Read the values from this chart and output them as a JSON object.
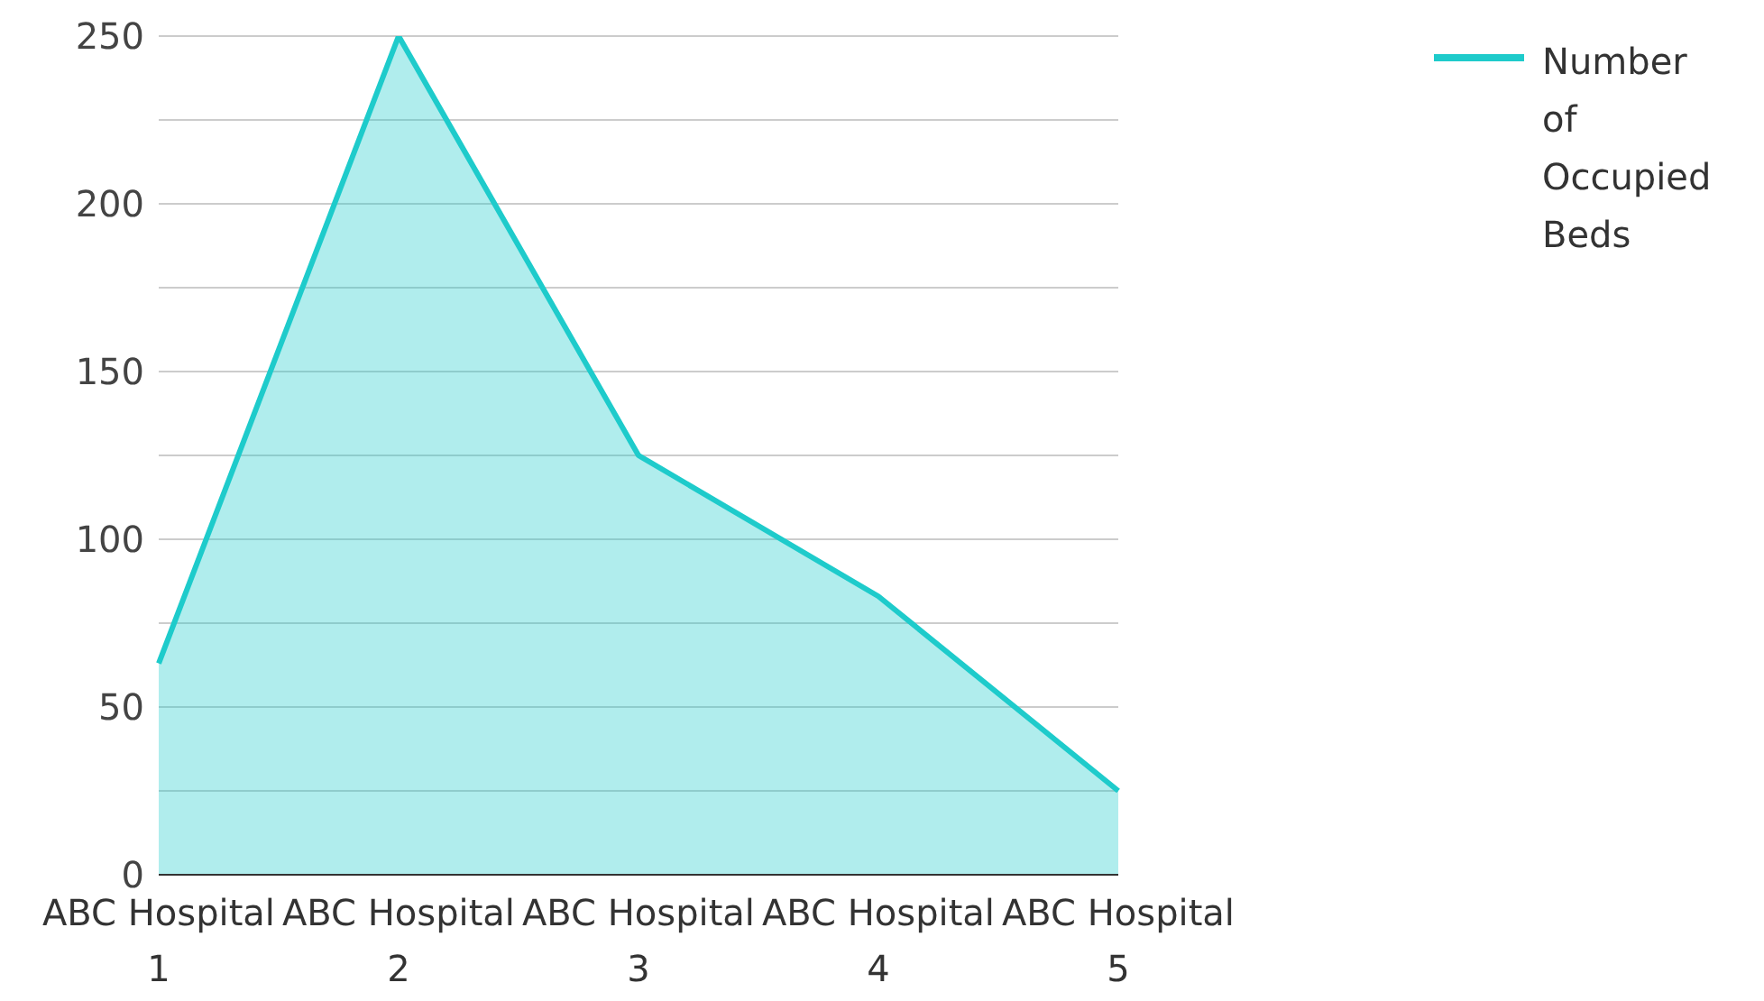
{
  "chart_data": {
    "type": "area",
    "categories": [
      "ABC Hospital 1",
      "ABC Hospital 2",
      "ABC Hospital 3",
      "ABC Hospital 4",
      "ABC Hospital 5"
    ],
    "series": [
      {
        "name": "Number of Occupied Beds",
        "color": "#1ecbcb",
        "values": [
          63,
          250,
          125,
          83,
          25
        ]
      }
    ],
    "ylim": [
      0,
      250
    ],
    "yticks": [
      0,
      {
        "value": 25,
        "label": null
      },
      50,
      {
        "value": 75,
        "label": null
      },
      100,
      {
        "value": 125,
        "label": null
      },
      150,
      {
        "value": 175,
        "label": null
      },
      200,
      {
        "value": 225,
        "label": null
      },
      250
    ],
    "grid": "y",
    "legend": "top right"
  }
}
